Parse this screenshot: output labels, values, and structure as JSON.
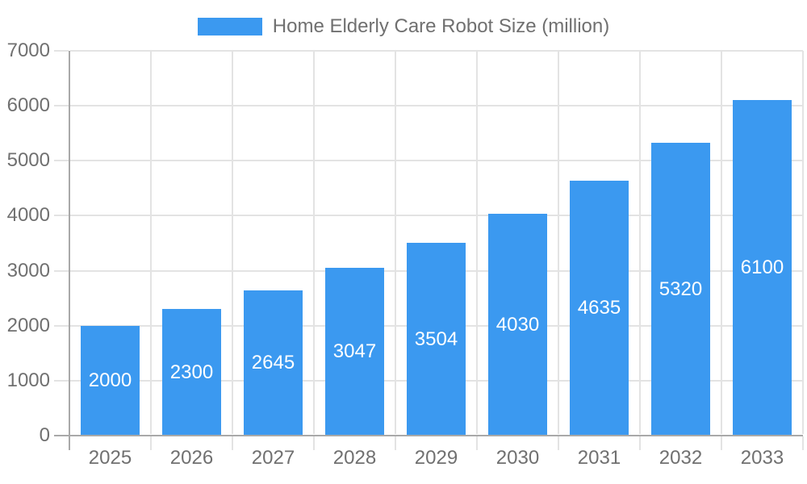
{
  "legend": {
    "label": "Home Elderly Care Robot Size (million)"
  },
  "chart_data": {
    "type": "bar",
    "title": "Home Elderly Care Robot Size (million)",
    "categories": [
      "2025",
      "2026",
      "2027",
      "2028",
      "2029",
      "2030",
      "2031",
      "2032",
      "2033"
    ],
    "values": [
      2000,
      2300,
      2645,
      3047,
      3504,
      4030,
      4635,
      5320,
      6100
    ],
    "bar_value_labels": [
      "2000",
      "2300",
      "2645",
      "3047",
      "3504",
      "4030",
      "4635",
      "5320",
      "6100"
    ],
    "xlabel": "",
    "ylabel": "",
    "ylim": [
      0,
      7000
    ],
    "ytick_interval": 1000,
    "ytick_labels": [
      "0",
      "1000",
      "2000",
      "3000",
      "4000",
      "5000",
      "6000",
      "7000"
    ],
    "grid": true,
    "legend_position": "top",
    "colors": {
      "bar": "#3B99F0",
      "grid": "#E3E3E3",
      "axis": "#A9A9A9",
      "text": "#707070",
      "value_label": "#FFFFFF",
      "background": "#FFFFFF"
    }
  }
}
